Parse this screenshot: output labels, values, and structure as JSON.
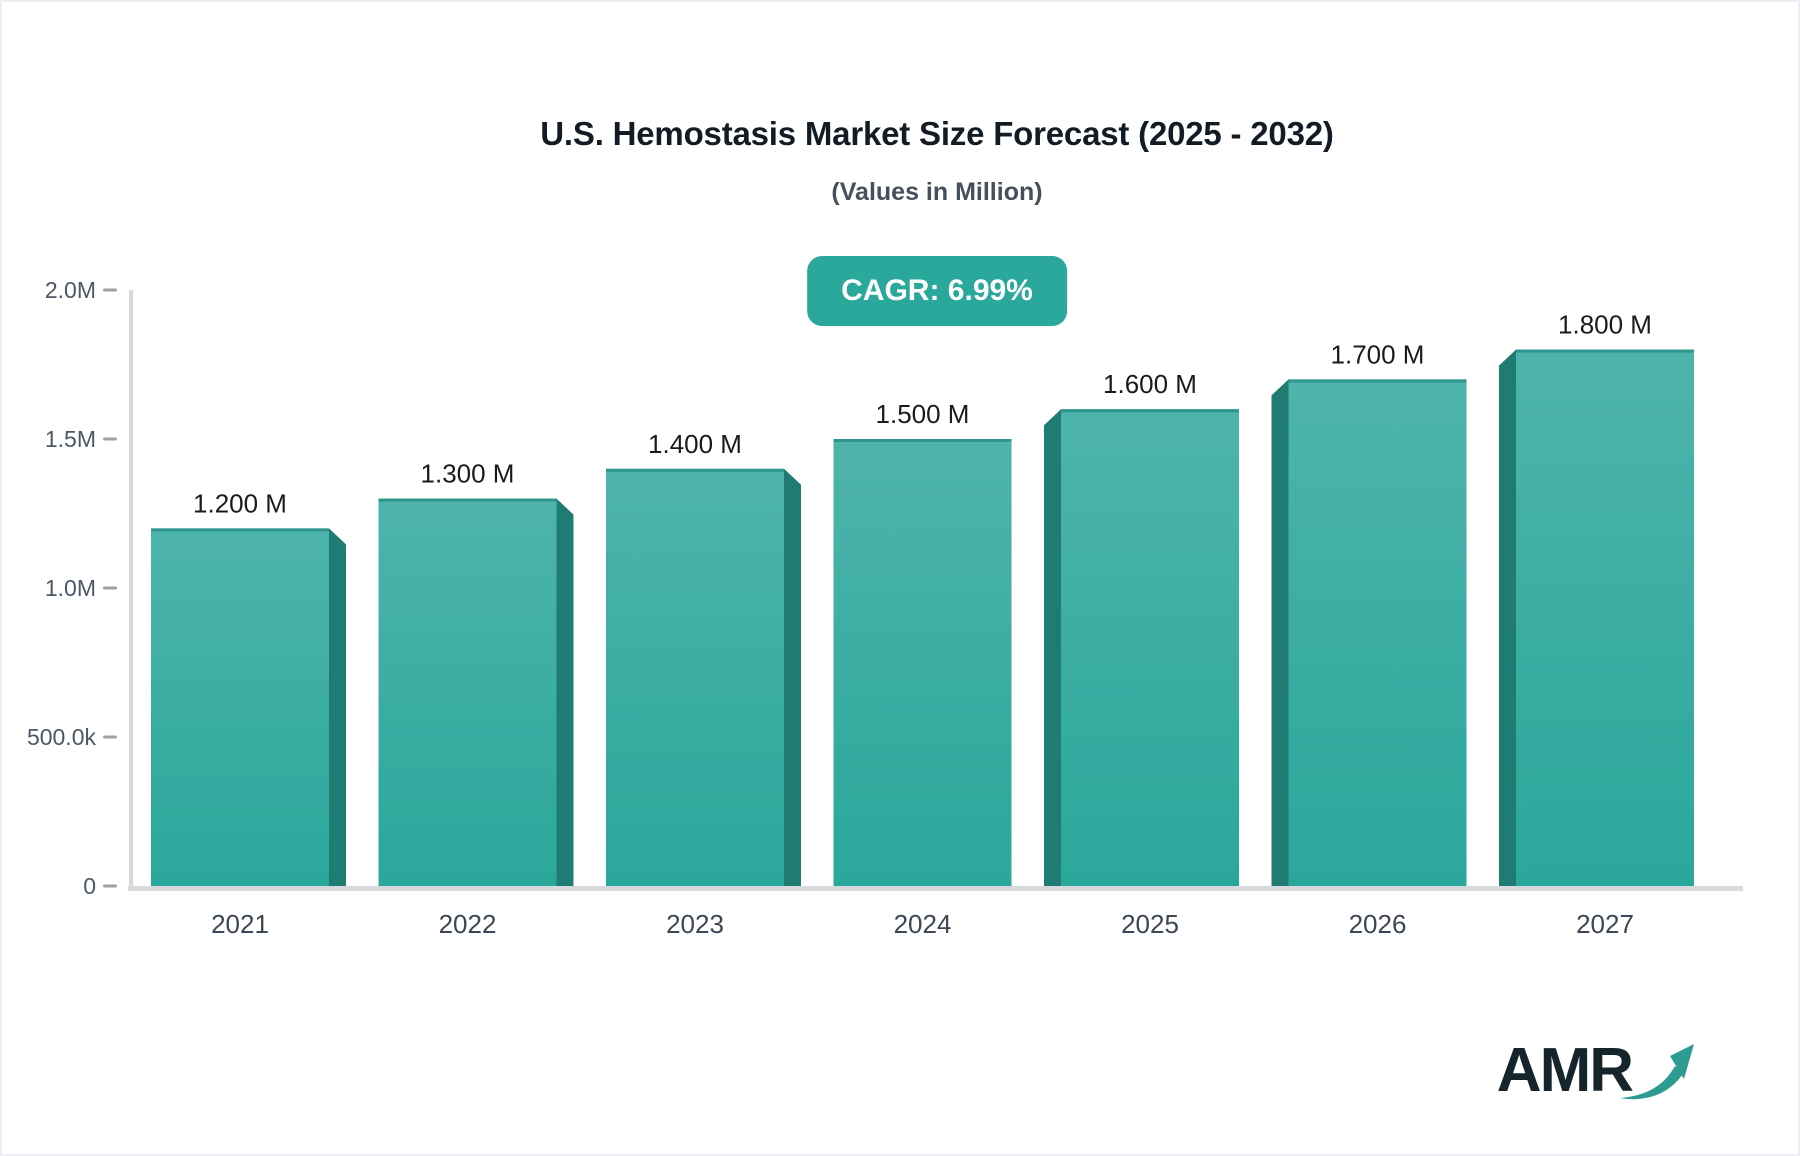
{
  "header": {
    "title": "U.S. Hemostasis Market Size Forecast (2025 - 2032)",
    "subtitle": "(Values in Million)",
    "cagr_label": "CAGR: 6.99%"
  },
  "chart_data": {
    "type": "bar",
    "title": "U.S. Hemostasis Market Size Forecast (2025 - 2032)",
    "subtitle": "(Values in Million)",
    "cagr": "6.99%",
    "categories": [
      "2021",
      "2022",
      "2023",
      "2024",
      "2025",
      "2026",
      "2027"
    ],
    "values": [
      1200000,
      1300000,
      1400000,
      1500000,
      1600000,
      1700000,
      1800000
    ],
    "value_labels": [
      "1.200 M",
      "1.300 M",
      "1.400 M",
      "1.500 M",
      "1.600 M",
      "1.700 M",
      "1.800 M"
    ],
    "y_ticks": [
      {
        "value": 0,
        "label": "0"
      },
      {
        "value": 500000,
        "label": "500.0k"
      },
      {
        "value": 1000000,
        "label": "1.0M"
      },
      {
        "value": 1500000,
        "label": "1.5M"
      },
      {
        "value": 2000000,
        "label": "2.0M"
      }
    ],
    "ylim": [
      0,
      2000000
    ],
    "xlabel": "",
    "ylabel": "",
    "grid": false,
    "legend": "none",
    "colors": {
      "bar_front_top": "#4eb4ab",
      "bar_front_bottom": "#2aa79b",
      "bar_side": "#1e7c72",
      "bar_top_edge": "#2e968c",
      "axis_line": "#d6d9de",
      "tick_dash": "#9aa2ab",
      "tick_label": "#4c5866",
      "year_label": "#3d4654",
      "value_label": "#1b1b1b",
      "badge_background": "#2ba89c"
    }
  },
  "logo": {
    "text": "AMR",
    "arrow_color": "#2d9b91",
    "text_color": "#16242b"
  }
}
